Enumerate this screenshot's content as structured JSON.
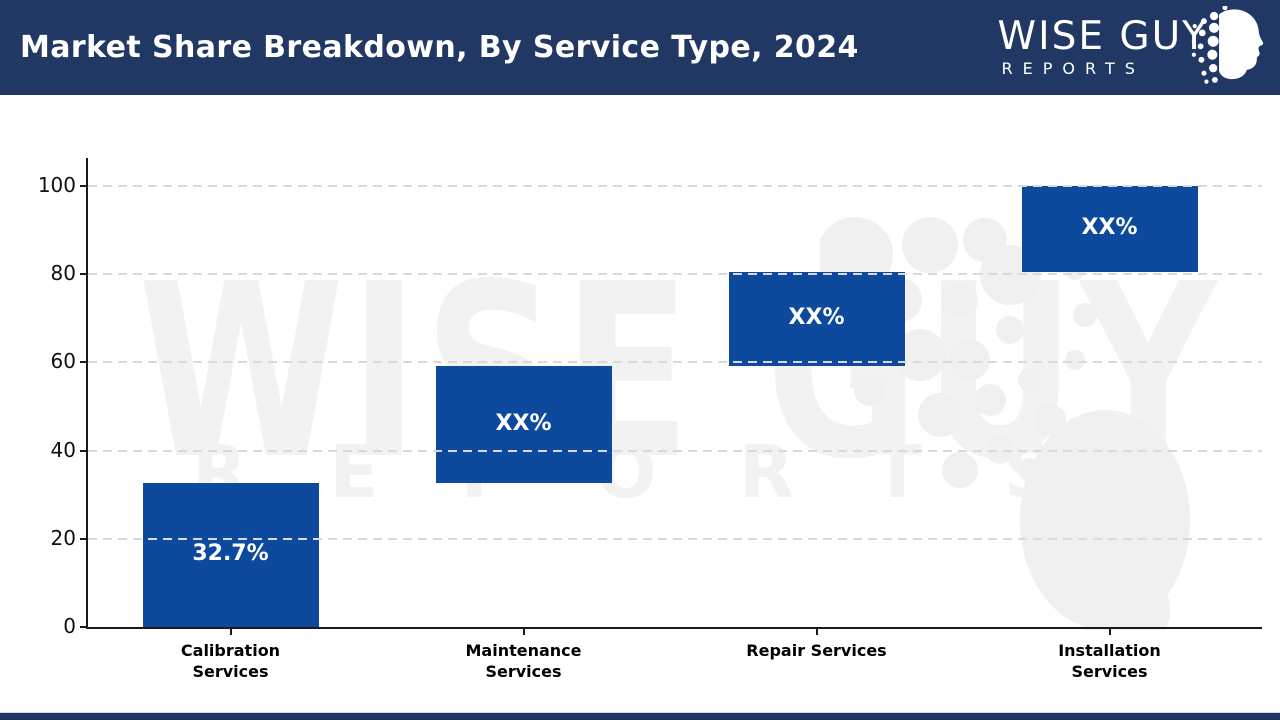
{
  "header": {
    "title": "Market Share Breakdown, By Service Type, 2024",
    "logo": {
      "wordmark": "WISE GUY",
      "subtext": "REPORTS"
    }
  },
  "watermark": {
    "wordmark": "WISE GUY",
    "subtext": "REPORTS"
  },
  "colors": {
    "header_bg": "#213764",
    "footer_bar": "#213764",
    "bar_fill": "#0d4a9e",
    "bar_label": "#ffffff",
    "gridline": "#d9d9d9",
    "axis": "#1a1a1a",
    "watermark": "#f2f2f2"
  },
  "chart_data": {
    "type": "bar",
    "subtype": "waterfall",
    "title": "Market Share Breakdown, By Service Type, 2024",
    "xlabel": "",
    "ylabel": "",
    "ylim": [
      0,
      100
    ],
    "yticks": [
      0,
      20,
      40,
      60,
      80,
      100
    ],
    "grid": "horizontal-dashed",
    "legend": "none",
    "categories": [
      "Calibration Services",
      "Maintenance Services",
      "Repair Services",
      "Installation Services"
    ],
    "category_label_lines": [
      [
        "Calibration",
        "Services"
      ],
      [
        "Maintenance",
        "Services"
      ],
      [
        "Repair Services"
      ],
      [
        "Installation",
        "Services"
      ]
    ],
    "segments": [
      {
        "category": "Calibration Services",
        "start": 0,
        "end": 32.7,
        "label": "32.7%"
      },
      {
        "category": "Maintenance Services",
        "start": 32.7,
        "end": 59.1,
        "label": "XX%"
      },
      {
        "category": "Repair Services",
        "start": 59.1,
        "end": 80.6,
        "label": "XX%"
      },
      {
        "category": "Installation Services",
        "start": 80.6,
        "end": 100,
        "label": "XX%"
      }
    ]
  }
}
